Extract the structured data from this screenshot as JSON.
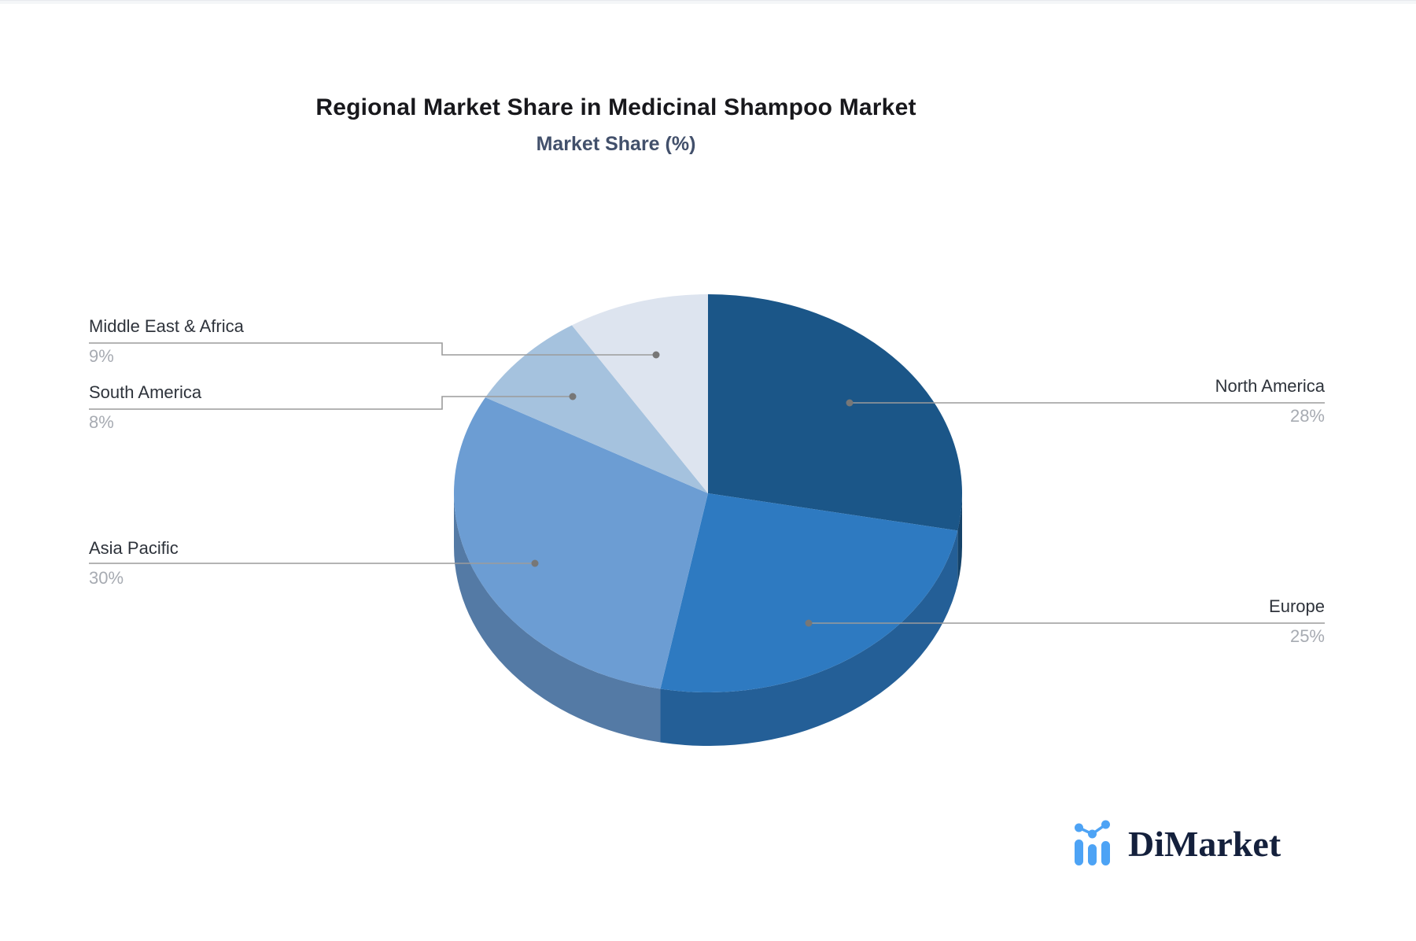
{
  "header": {
    "title": "Regional Market Share in Medicinal Shampoo Market",
    "subtitle": "Market Share (%)"
  },
  "chart_data": {
    "type": "pie",
    "title": "Regional Market Share in Medicinal Shampoo Market",
    "subtitle": "Market Share (%)",
    "unit": "%",
    "style": "3d-pie",
    "direction": "clockwise",
    "start_angle_deg": 0,
    "legend_position": "callout-labels",
    "slices": [
      {
        "label": "North America",
        "value": 28,
        "display": "28%",
        "color": "#1b5688"
      },
      {
        "label": "Europe",
        "value": 25,
        "display": "25%",
        "color": "#2e7ac1"
      },
      {
        "label": "Asia Pacific",
        "value": 30,
        "display": "30%",
        "color": "#6c9dd3"
      },
      {
        "label": "South America",
        "value": 8,
        "display": "8%",
        "color": "#a5c2de"
      },
      {
        "label": "Middle East & Africa",
        "value": 9,
        "display": "9%",
        "color": "#dde4ef"
      }
    ]
  },
  "callout_style": {
    "line_color": "#9b9b9b",
    "dot_color": "#777777",
    "label_color": "#2e333b",
    "value_color": "#a7abb2"
  },
  "logo": {
    "text": "DiMarket",
    "icon": "bar-line-chart-icon",
    "icon_color": "#4da3f5",
    "text_color": "#14203c"
  }
}
